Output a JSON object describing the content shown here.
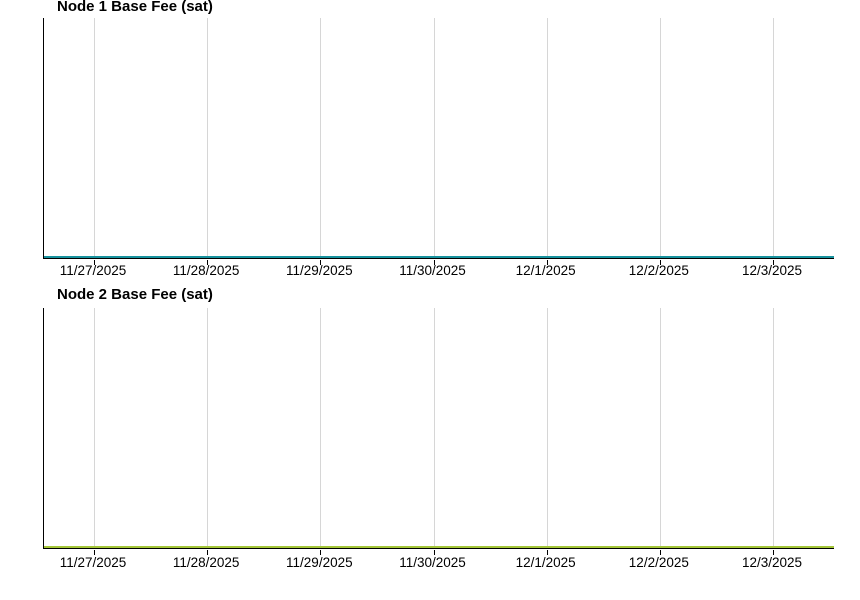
{
  "page": {
    "background_color": "#ffffff",
    "gridline_color": "#d6d6d6",
    "axis_color": "#000000"
  },
  "chart_data": [
    {
      "type": "line",
      "title": "Node 1 Base Fee (sat)",
      "x": [
        "11/27/2025",
        "11/28/2025",
        "11/29/2025",
        "11/30/2025",
        "12/1/2025",
        "12/2/2025",
        "12/3/2025"
      ],
      "series": [
        {
          "name": "Node 1 Base Fee (sat)",
          "values": [
            0,
            0,
            0,
            0,
            0,
            0,
            0
          ]
        }
      ],
      "line_color": "#17929e",
      "xlabel": "",
      "ylabel": "",
      "y_tick_labels": [],
      "ylim": [
        0,
        null
      ],
      "grid": "vertical-only",
      "legend": "none",
      "flat_line_at_baseline": true
    },
    {
      "type": "line",
      "title": "Node 2 Base Fee (sat)",
      "x": [
        "11/27/2025",
        "11/28/2025",
        "11/29/2025",
        "11/30/2025",
        "12/1/2025",
        "12/2/2025",
        "12/3/2025"
      ],
      "series": [
        {
          "name": "Node 2 Base Fee (sat)",
          "values": [
            0,
            0,
            0,
            0,
            0,
            0,
            0
          ]
        }
      ],
      "line_color": "#a4c639",
      "xlabel": "",
      "ylabel": "",
      "y_tick_labels": [],
      "ylim": [
        0,
        null
      ],
      "grid": "vertical-only",
      "legend": "none",
      "flat_line_at_baseline": true
    }
  ]
}
